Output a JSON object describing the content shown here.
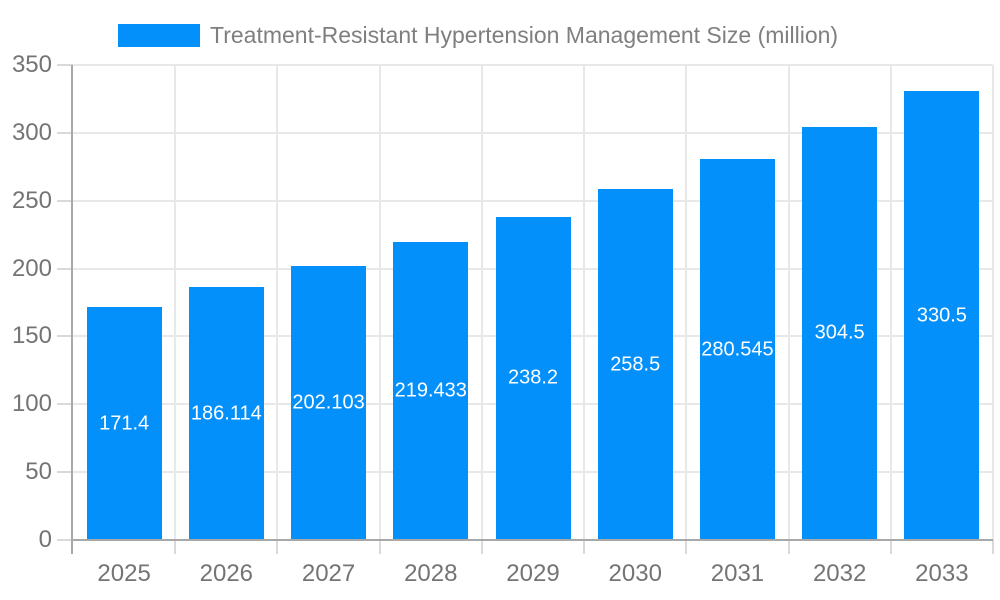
{
  "legend": {
    "label": "Treatment-Resistant Hypertension Management Size (million)"
  },
  "colors": {
    "bar": "#0490FB",
    "axis_line": "#a8a8a8",
    "grid_line": "#e8e8e8",
    "tick_mark": "#d9d9d9",
    "tick_text": "#747474",
    "legend_text": "#7f7f7f",
    "bar_label_text": "#ffffff"
  },
  "chart_data": {
    "type": "bar",
    "title": "Treatment-Resistant Hypertension Management Size (million)",
    "categories": [
      "2025",
      "2026",
      "2027",
      "2028",
      "2029",
      "2030",
      "2031",
      "2032",
      "2033"
    ],
    "values": [
      171.4,
      186.114,
      202.103,
      219.433,
      238.2,
      258.5,
      280.545,
      304.5,
      330.5
    ],
    "value_labels": [
      "171.4",
      "186.114",
      "202.103",
      "219.433",
      "238.2",
      "258.5",
      "280.545",
      "304.5",
      "330.5"
    ],
    "xlabel": "",
    "ylabel": "",
    "ylim": [
      0,
      350
    ],
    "y_ticks": [
      0,
      50,
      100,
      150,
      200,
      250,
      300,
      350
    ],
    "grid": true,
    "vertical_category_gridlines": true,
    "legend_position": "top-left",
    "bar_label_position": "inside-middle",
    "series_name": "Treatment-Resistant Hypertension Management Size (million)"
  }
}
